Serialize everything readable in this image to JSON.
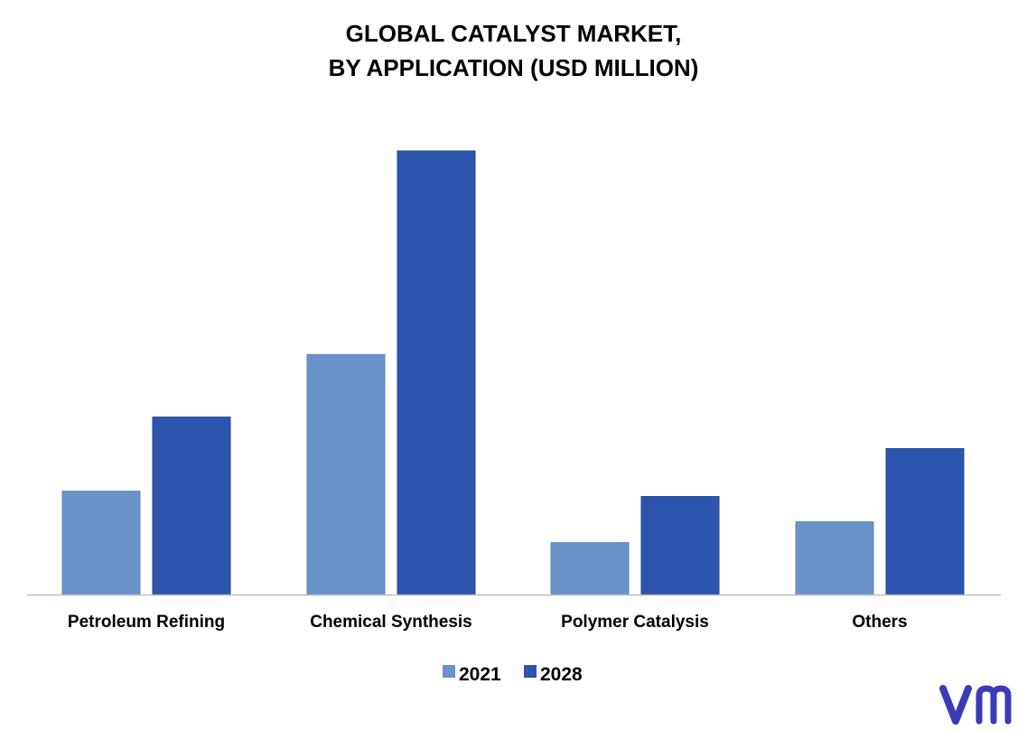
{
  "chart_data": {
    "type": "bar",
    "title": "GLOBAL CATALYST MARKET,",
    "subtitle": "BY APPLICATION (USD MILLION)",
    "categories": [
      "Petroleum Refining",
      "Chemical Synthesis",
      "Polymer Catalysis",
      "Others"
    ],
    "series": [
      {
        "name": "2021",
        "values": [
          23.3,
          54.1,
          11.7,
          16.4
        ],
        "color": "#6a94c9"
      },
      {
        "name": "2028",
        "values": [
          40.0,
          100.0,
          22.1,
          32.9
        ],
        "color": "#2d55ad"
      }
    ],
    "ylim": [
      0,
      100
    ],
    "xlabel": "",
    "ylabel": "",
    "grid": false,
    "legend": "bottom-center"
  },
  "branding": {
    "logo": "vmr-logo",
    "logo_color": "#3b3bb8"
  }
}
